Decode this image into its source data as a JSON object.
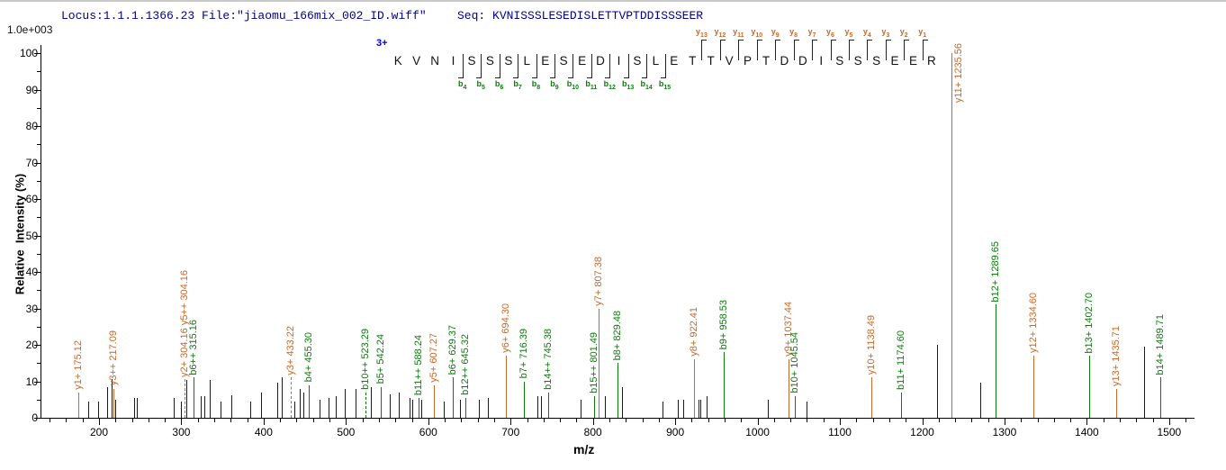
{
  "header": {
    "locus_file": "Locus:1.1.1.1366.23 File:\"jiaomu_166mix_002_ID.wiff\"",
    "seq_label": "Seq:",
    "seq_value": "KVNISSSLESEDISLETTVPTDDISSSEER",
    "scale_note": "1.0e+003"
  },
  "colors": {
    "y_ion": "#c6692b",
    "b_ion": "#0b7d0b",
    "unassigned": "#1a1a1a",
    "header_text": "#00008b",
    "charge": "#0000d6"
  },
  "peptide": {
    "charge_label": "3+",
    "residues": [
      "K",
      "V",
      "N",
      "I",
      "S",
      "S",
      "S",
      "L",
      "E",
      "S",
      "E",
      "D",
      "I",
      "S",
      "L",
      "E",
      "T",
      "T",
      "V",
      "P",
      "T",
      "D",
      "D",
      "I",
      "S",
      "S",
      "S",
      "E",
      "E",
      "R"
    ],
    "b_marks": [
      {
        "after": 4,
        "label": "b4"
      },
      {
        "after": 5,
        "label": "b5"
      },
      {
        "after": 6,
        "label": "b6"
      },
      {
        "after": 7,
        "label": "b7"
      },
      {
        "after": 8,
        "label": "b8"
      },
      {
        "after": 9,
        "label": "b9"
      },
      {
        "after": 10,
        "label": "b10"
      },
      {
        "after": 11,
        "label": "b11"
      },
      {
        "after": 12,
        "label": "b12"
      },
      {
        "after": 13,
        "label": "b13"
      },
      {
        "after": 14,
        "label": "b14"
      },
      {
        "after": 15,
        "label": "b15"
      }
    ],
    "y_marks": [
      {
        "before": 18,
        "label": "y13"
      },
      {
        "before": 19,
        "label": "y12"
      },
      {
        "before": 20,
        "label": "y11"
      },
      {
        "before": 21,
        "label": "y10"
      },
      {
        "before": 22,
        "label": "y9"
      },
      {
        "before": 23,
        "label": "y8"
      },
      {
        "before": 24,
        "label": "y7"
      },
      {
        "before": 25,
        "label": "y6"
      },
      {
        "before": 26,
        "label": "y5"
      },
      {
        "before": 27,
        "label": "y4"
      },
      {
        "before": 28,
        "label": "y3"
      },
      {
        "before": 29,
        "label": "y2"
      },
      {
        "before": 30,
        "label": "y1"
      }
    ]
  },
  "chart_data": {
    "type": "bar",
    "subtype": "ms2-fragment-spectrum",
    "title": "",
    "xlabel": "m/z",
    "ylabel": "Relative  Intensity (%)",
    "xlim": [
      130,
      1525
    ],
    "ylim": [
      0,
      100
    ],
    "x_ticks": [
      200,
      300,
      400,
      500,
      600,
      700,
      800,
      900,
      1000,
      1100,
      1200,
      1300,
      1400,
      1500
    ],
    "x_minor_step": 20,
    "y_ticks": [
      0,
      10,
      20,
      30,
      40,
      50,
      60,
      70,
      80,
      90,
      100
    ],
    "y_minor_step": 5,
    "grid": false,
    "peaks": [
      {
        "mz": 175.12,
        "intensity": 7,
        "series": "y",
        "label": "y1+ 175.12"
      },
      {
        "mz": 187,
        "intensity": 4.5,
        "series": "unassigned"
      },
      {
        "mz": 199,
        "intensity": 4.5,
        "series": "unassigned"
      },
      {
        "mz": 210,
        "intensity": 8.5,
        "series": "unassigned"
      },
      {
        "mz": 215,
        "intensity": 10.5,
        "series": "unassigned"
      },
      {
        "mz": 217.09,
        "intensity": 8,
        "series": "y",
        "label": "y3++ 217.09"
      },
      {
        "mz": 220,
        "intensity": 5,
        "series": "unassigned"
      },
      {
        "mz": 243,
        "intensity": 5.5,
        "series": "unassigned"
      },
      {
        "mz": 246,
        "intensity": 5.5,
        "series": "unassigned"
      },
      {
        "mz": 291,
        "intensity": 5.5,
        "series": "unassigned"
      },
      {
        "mz": 300,
        "intensity": 4.5,
        "series": "unassigned"
      },
      {
        "mz": 304.16,
        "intensity": 10.5,
        "series": "y",
        "label": "y2+ 304.16  y5++ 304.16",
        "dashed": true
      },
      {
        "mz": 306,
        "intensity": 10.4,
        "series": "unassigned"
      },
      {
        "mz": 315.16,
        "intensity": 11,
        "series": "b",
        "label": "b6++ 315.16"
      },
      {
        "mz": 324,
        "intensity": 6,
        "series": "unassigned"
      },
      {
        "mz": 328,
        "intensity": 6,
        "series": "unassigned"
      },
      {
        "mz": 334,
        "intensity": 10.4,
        "series": "unassigned"
      },
      {
        "mz": 348,
        "intensity": 4.5,
        "series": "unassigned"
      },
      {
        "mz": 361,
        "intensity": 6.3,
        "series": "unassigned"
      },
      {
        "mz": 384,
        "intensity": 4.5,
        "series": "unassigned"
      },
      {
        "mz": 397,
        "intensity": 6.8,
        "series": "unassigned"
      },
      {
        "mz": 417,
        "intensity": 9.7,
        "series": "unassigned"
      },
      {
        "mz": 422,
        "intensity": 11,
        "series": "unassigned"
      },
      {
        "mz": 433.22,
        "intensity": 11,
        "series": "y",
        "label": "y3+ 433.22",
        "dashed": true
      },
      {
        "mz": 437,
        "intensity": 4.5,
        "series": "unassigned"
      },
      {
        "mz": 444,
        "intensity": 8,
        "series": "unassigned"
      },
      {
        "mz": 448,
        "intensity": 7,
        "series": "unassigned"
      },
      {
        "mz": 455.3,
        "intensity": 9,
        "series": "b",
        "label": "b4+ 455.30"
      },
      {
        "mz": 468,
        "intensity": 5,
        "series": "unassigned"
      },
      {
        "mz": 479,
        "intensity": 5.5,
        "series": "unassigned"
      },
      {
        "mz": 488,
        "intensity": 6,
        "series": "unassigned"
      },
      {
        "mz": 498,
        "intensity": 8,
        "series": "unassigned"
      },
      {
        "mz": 512,
        "intensity": 8,
        "series": "unassigned"
      },
      {
        "mz": 523.29,
        "intensity": 7,
        "series": "b",
        "label": "b10++ 523.29",
        "dashed": true
      },
      {
        "mz": 530,
        "intensity": 8.5,
        "series": "unassigned"
      },
      {
        "mz": 542.24,
        "intensity": 8.5,
        "series": "b",
        "label": "b5+ 542.24"
      },
      {
        "mz": 553,
        "intensity": 6.5,
        "series": "unassigned"
      },
      {
        "mz": 564,
        "intensity": 7,
        "series": "unassigned"
      },
      {
        "mz": 577,
        "intensity": 5.5,
        "series": "unassigned"
      },
      {
        "mz": 581,
        "intensity": 5,
        "series": "unassigned"
      },
      {
        "mz": 588.24,
        "intensity": 5.5,
        "series": "b",
        "label": "b11++ 588.24"
      },
      {
        "mz": 591,
        "intensity": 5,
        "series": "unassigned"
      },
      {
        "mz": 607.27,
        "intensity": 9,
        "series": "y",
        "label": "y5+ 607.27"
      },
      {
        "mz": 619,
        "intensity": 4.5,
        "series": "unassigned"
      },
      {
        "mz": 629.37,
        "intensity": 11,
        "series": "b",
        "label": "b6+ 629.37"
      },
      {
        "mz": 639,
        "intensity": 5,
        "series": "unassigned"
      },
      {
        "mz": 645.32,
        "intensity": 5.5,
        "series": "b",
        "label": "b12++ 645.32"
      },
      {
        "mz": 661,
        "intensity": 5,
        "series": "unassigned"
      },
      {
        "mz": 672,
        "intensity": 5.5,
        "series": "unassigned"
      },
      {
        "mz": 694.3,
        "intensity": 17,
        "series": "y",
        "label": "y6+ 694.30"
      },
      {
        "mz": 716.39,
        "intensity": 10,
        "series": "b",
        "label": "b7+ 716.39"
      },
      {
        "mz": 732,
        "intensity": 6,
        "series": "unassigned"
      },
      {
        "mz": 737,
        "intensity": 6,
        "series": "unassigned"
      },
      {
        "mz": 745.38,
        "intensity": 7,
        "series": "b",
        "label": "b14++ 745.38"
      },
      {
        "mz": 785,
        "intensity": 5,
        "series": "unassigned"
      },
      {
        "mz": 801.49,
        "intensity": 6,
        "series": "b",
        "label": "b15++ 801.49"
      },
      {
        "mz": 807.38,
        "intensity": 30,
        "series": "y",
        "label": "y7+ 807.38"
      },
      {
        "mz": 815,
        "intensity": 6,
        "series": "unassigned"
      },
      {
        "mz": 829.48,
        "intensity": 15,
        "series": "b",
        "label": "b8+ 829.48"
      },
      {
        "mz": 835,
        "intensity": 8.5,
        "series": "unassigned"
      },
      {
        "mz": 885,
        "intensity": 4.5,
        "series": "unassigned"
      },
      {
        "mz": 903,
        "intensity": 5,
        "series": "unassigned"
      },
      {
        "mz": 910,
        "intensity": 5,
        "series": "unassigned"
      },
      {
        "mz": 922.41,
        "intensity": 16,
        "series": "y",
        "label": "y8+ 922.41"
      },
      {
        "mz": 928,
        "intensity": 5,
        "series": "unassigned"
      },
      {
        "mz": 930,
        "intensity": 5,
        "series": "unassigned"
      },
      {
        "mz": 938,
        "intensity": 6,
        "series": "unassigned"
      },
      {
        "mz": 958.53,
        "intensity": 18,
        "series": "b",
        "label": "b9+ 958.53"
      },
      {
        "mz": 1012,
        "intensity": 5,
        "series": "unassigned"
      },
      {
        "mz": 1037.44,
        "intensity": 16,
        "series": "y",
        "label": "y9+ 1037.44"
      },
      {
        "mz": 1045.54,
        "intensity": 6,
        "series": "b",
        "label": "b10+ 1045.54"
      },
      {
        "mz": 1060,
        "intensity": 4.5,
        "series": "unassigned"
      },
      {
        "mz": 1138.49,
        "intensity": 11,
        "series": "y",
        "label": "y10+ 1138.49"
      },
      {
        "mz": 1174.6,
        "intensity": 7,
        "series": "b",
        "label": "b11+ 1174.60"
      },
      {
        "mz": 1218,
        "intensity": 20,
        "series": "unassigned"
      },
      {
        "mz": 1235.56,
        "intensity": 100,
        "series": "y",
        "label": "y11+ 1235.56"
      },
      {
        "mz": 1270,
        "intensity": 9.6,
        "series": "unassigned"
      },
      {
        "mz": 1289.65,
        "intensity": 31,
        "series": "b",
        "label": "b12+ 1289.65"
      },
      {
        "mz": 1334.6,
        "intensity": 17,
        "series": "y",
        "label": "y12+ 1334.60"
      },
      {
        "mz": 1402.7,
        "intensity": 17,
        "series": "b",
        "label": "b13+ 1402.70"
      },
      {
        "mz": 1435.71,
        "intensity": 8,
        "series": "y",
        "label": "y13+ 1435.71"
      },
      {
        "mz": 1470,
        "intensity": 19.5,
        "series": "unassigned"
      },
      {
        "mz": 1489.71,
        "intensity": 11,
        "series": "b",
        "label": "b14+ 1489.71"
      }
    ]
  }
}
